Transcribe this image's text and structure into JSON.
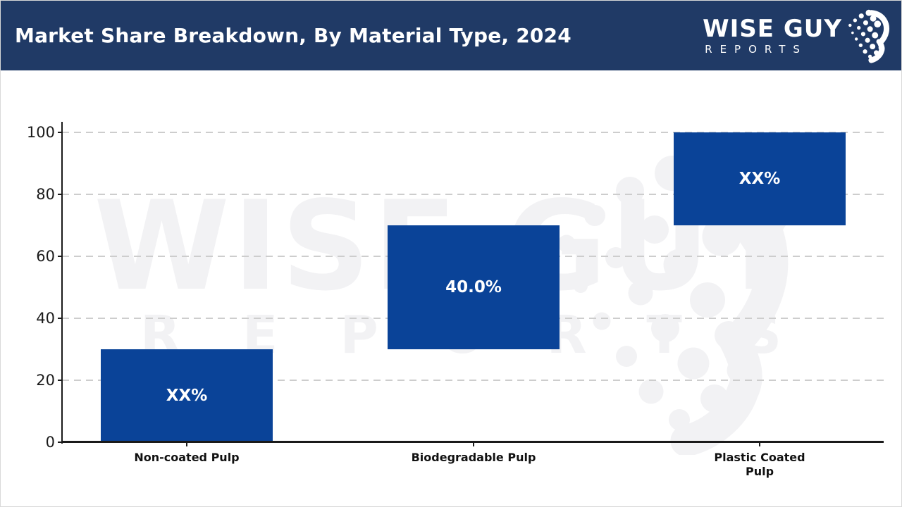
{
  "header": {
    "title": "Market Share Breakdown, By Material Type, 2024",
    "logo": {
      "name": "WISE GUY",
      "tagline": "REPORTS"
    }
  },
  "watermark": {
    "line1": "WISE GUY",
    "line2": "REPORTS"
  },
  "colors": {
    "header_bg": "#203a66",
    "bar": "#0a4398",
    "bar_label": "#ffffff",
    "gridline": "#cdcdcd",
    "axis": "#1a1a1a",
    "watermark": "#f2f2f4"
  },
  "chart_data": {
    "type": "bar",
    "subtype": "floating-range-bars",
    "title": "Market Share Breakdown, By Material Type, 2024",
    "categories": [
      "Non-coated Pulp",
      "Biodegradable Pulp",
      "Plastic Coated\nPulp"
    ],
    "bars": [
      {
        "category": "Non-coated Pulp",
        "from": 0,
        "to": 30,
        "value_label": "XX%"
      },
      {
        "category": "Biodegradable Pulp",
        "from": 30,
        "to": 70,
        "value_label": "40.0%"
      },
      {
        "category": "Plastic Coated\nPulp",
        "from": 70,
        "to": 100,
        "value_label": "XX%"
      }
    ],
    "ylim": [
      0,
      100
    ],
    "yticks": [
      0,
      20,
      40,
      60,
      80,
      100
    ],
    "xlabel": "",
    "ylabel": "",
    "grid": "horizontal-dashed",
    "legend": "none"
  }
}
